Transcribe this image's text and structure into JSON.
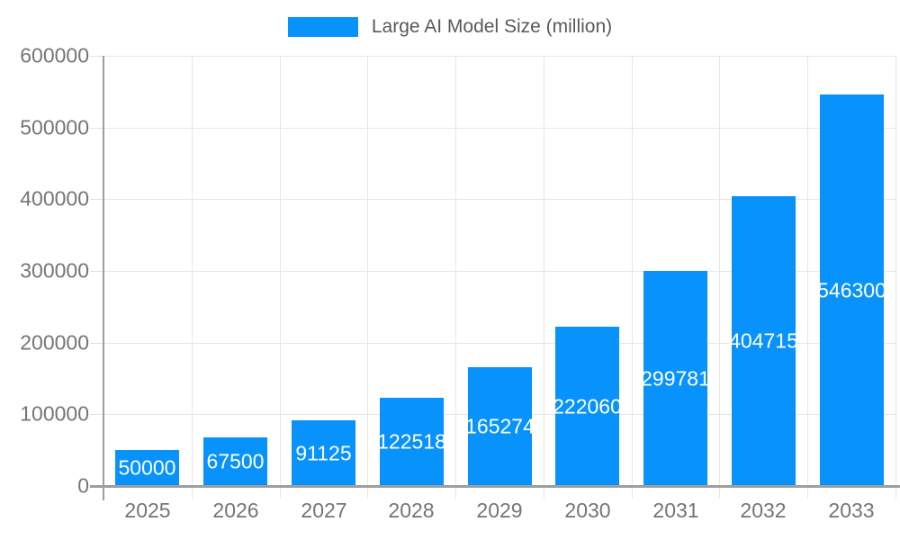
{
  "legend": {
    "title": "Large AI Model Size (million)"
  },
  "chart_data": {
    "type": "bar",
    "title": "Large AI Model Size (million)",
    "categories": [
      "2025",
      "2026",
      "2027",
      "2028",
      "2029",
      "2030",
      "2031",
      "2032",
      "2033"
    ],
    "values": [
      50000,
      67500,
      91125,
      122518,
      165274,
      222060,
      299781,
      404715,
      546300
    ],
    "bar_labels": [
      "50000",
      "67500",
      "91125",
      "122518",
      "165274",
      "222060",
      "299781",
      "404715",
      "546300"
    ],
    "xlabel": "",
    "ylabel": "",
    "ylim": [
      0,
      600000
    ],
    "yticks": [
      0,
      100000,
      200000,
      300000,
      400000,
      500000,
      600000
    ],
    "ytick_labels": [
      "0",
      "100000",
      "200000",
      "300000",
      "400000",
      "500000",
      "600000"
    ],
    "grid": true,
    "legend_position": "top",
    "colors": {
      "bar": "#0892fb",
      "grid": "#e6e6e6",
      "tick": "#e0e0e0",
      "axis": "#9e9e9e",
      "axis_text": "#757575",
      "legend_text": "#58595b",
      "bar_label": "#ffffff",
      "background": "#ffffff"
    }
  }
}
